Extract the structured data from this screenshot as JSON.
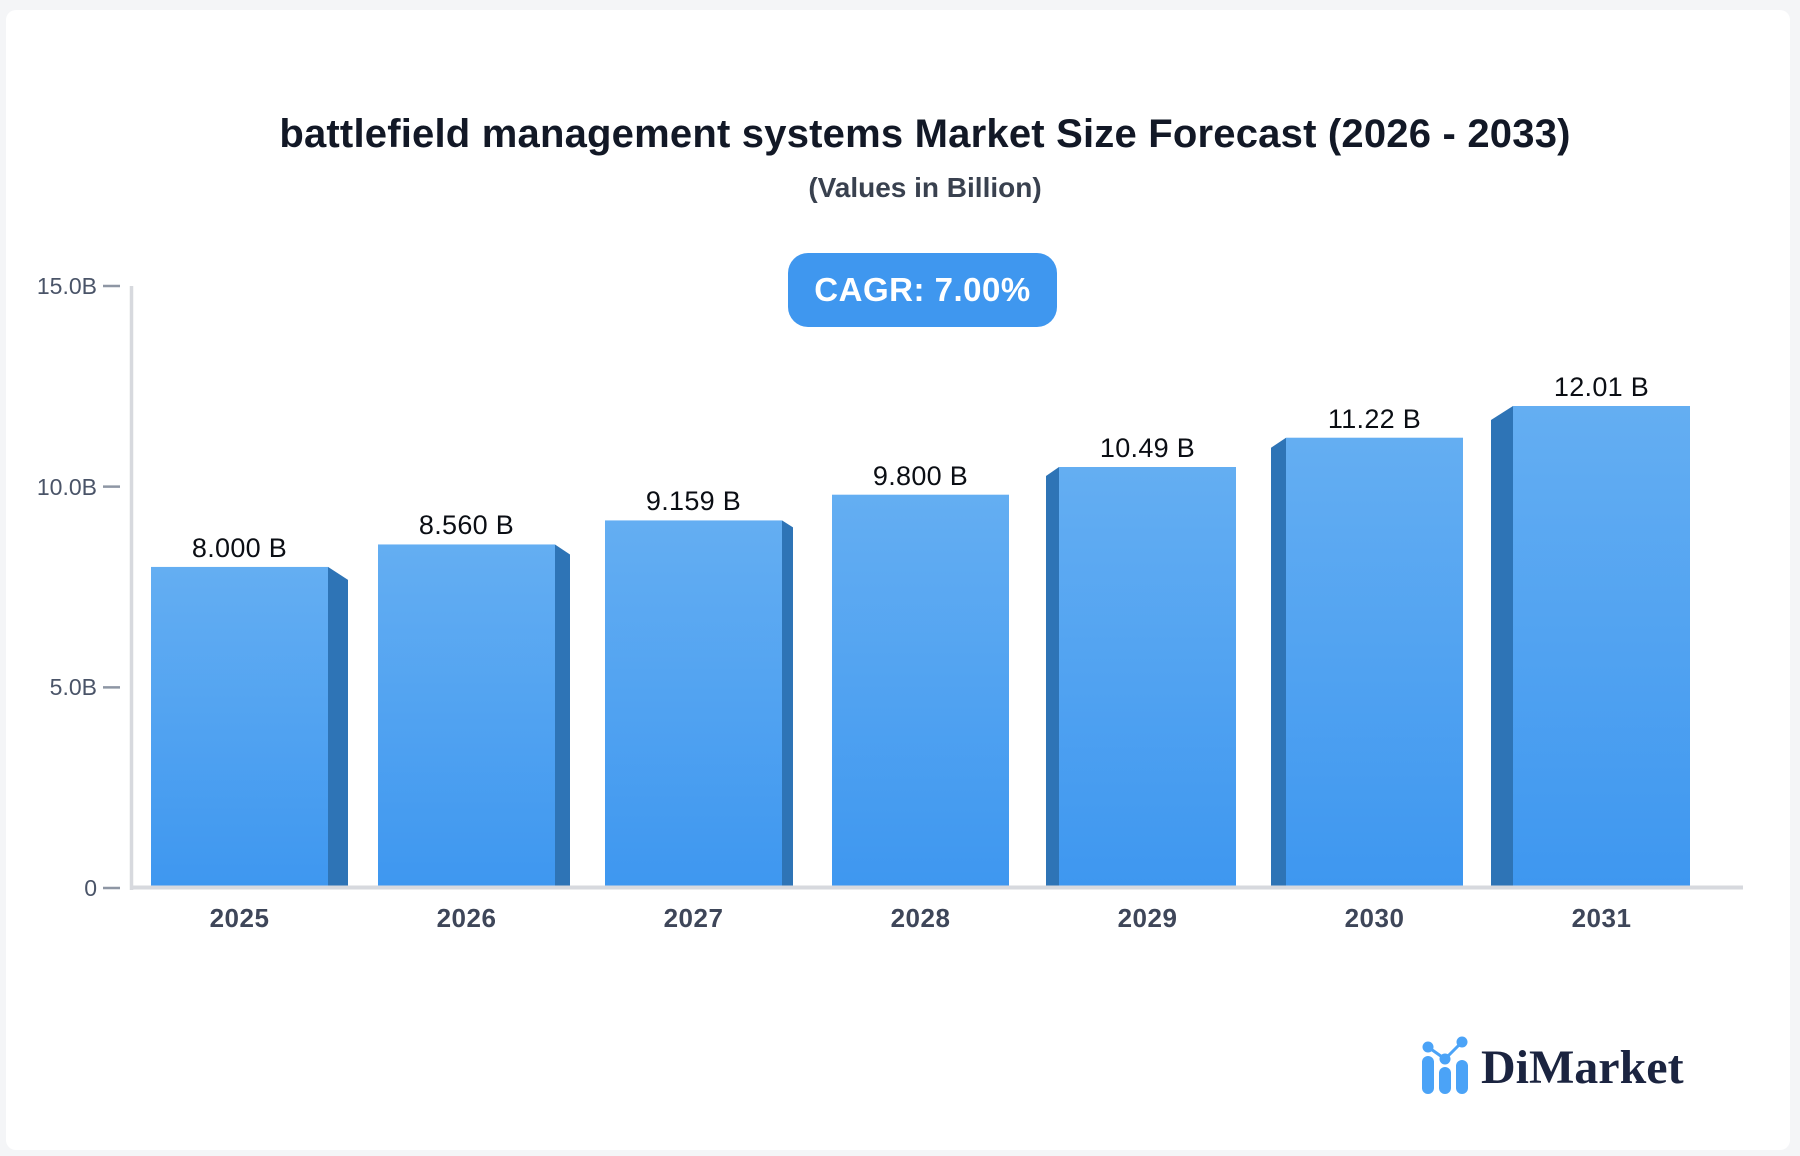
{
  "page": {
    "background": "#f4f5f7",
    "card_background": "#ffffff"
  },
  "header": {
    "title": "battlefield management systems Market Size Forecast (2026 - 2033)",
    "subtitle": "(Values in Billion)",
    "cagr_label": "CAGR: 7.00%",
    "cagr_badge_color": "#3f97ef"
  },
  "chart_data": {
    "type": "bar",
    "title": "battlefield management systems Market Size Forecast (2026 - 2033)",
    "subtitle": "(Values in Billion)",
    "annotation": "CAGR: 7.00%",
    "categories": [
      "2025",
      "2026",
      "2027",
      "2028",
      "2029",
      "2030",
      "2031"
    ],
    "values": [
      8.0,
      8.56,
      9.159,
      9.8,
      10.49,
      11.22,
      12.01
    ],
    "value_labels": [
      "8.000 B",
      "8.560 B",
      "9.159 B",
      "9.800 B",
      "10.49 B",
      "11.22 B",
      "12.01 B"
    ],
    "unit": "Billion",
    "xlabel": "",
    "ylabel": "",
    "ylim": [
      0,
      15
    ],
    "y_ticks": [
      {
        "value": 15,
        "label": "15.0B"
      },
      {
        "value": 10,
        "label": "10.0B"
      },
      {
        "value": 5,
        "label": "5.0B"
      },
      {
        "value": 0,
        "label": "0"
      }
    ],
    "grid": false,
    "legend": false,
    "style": "3d-perspective-bars",
    "bar_color_top": "#64aef2",
    "bar_color_bottom": "#3e97f0",
    "bar_side_color": "#2e74b6",
    "axis_line_color": "#d7d9de",
    "tick_mark_color": "#8e96a4"
  },
  "footer": {
    "brand": "DiMarket",
    "logo_icon": "mini-bar-chart-icon",
    "logo_icon_color": "#4ba3f7",
    "brand_color": "#1b2440"
  }
}
